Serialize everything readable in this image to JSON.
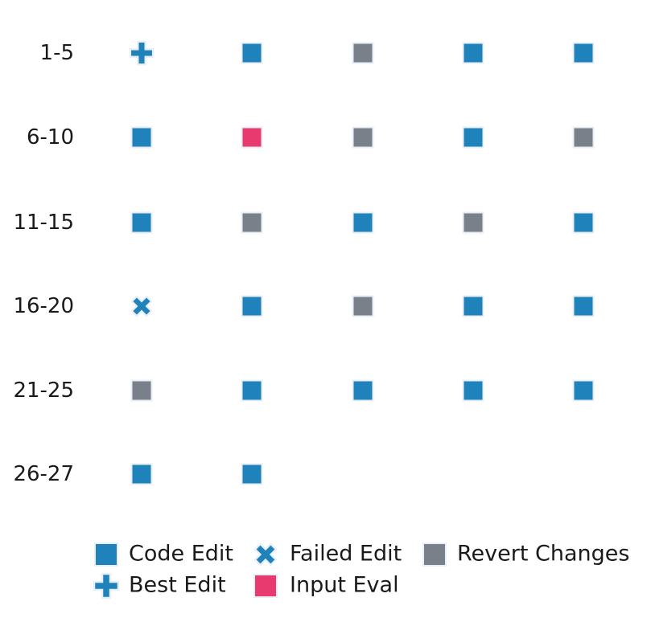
{
  "chart_data": {
    "type": "scatter",
    "title": "",
    "subtitle": "",
    "xlabel": "",
    "ylabel": "",
    "grid": false,
    "legend_position": "bottom",
    "description": "Sequence of 27 edit actions wrapped five per row; each cell marker encodes the action type",
    "row_labels": [
      "1-5",
      "6-10",
      "11-15",
      "16-20",
      "21-25",
      "26-27"
    ],
    "rows": [
      {
        "label": "1-5",
        "markers": [
          "best",
          "code",
          "revert",
          "code",
          "code"
        ]
      },
      {
        "label": "6-10",
        "markers": [
          "code",
          "input",
          "revert",
          "code",
          "revert"
        ]
      },
      {
        "label": "11-15",
        "markers": [
          "code",
          "revert",
          "code",
          "revert",
          "code"
        ]
      },
      {
        "label": "16-20",
        "markers": [
          "failed",
          "code",
          "revert",
          "code",
          "code"
        ]
      },
      {
        "label": "21-25",
        "markers": [
          "revert",
          "code",
          "code",
          "code",
          "code"
        ]
      },
      {
        "label": "26-27",
        "markers": [
          "code",
          "code",
          null,
          null,
          null
        ]
      }
    ],
    "marker_types": {
      "code": {
        "label": "Code Edit",
        "shape": "square",
        "color": "#1f82bb"
      },
      "failed": {
        "label": "Failed Edit",
        "shape": "x",
        "color": "#1f82bb"
      },
      "revert": {
        "label": "Revert Changes",
        "shape": "square",
        "color": "#79808a"
      },
      "best": {
        "label": "Best Edit",
        "shape": "plus",
        "color": "#1f82bb"
      },
      "input": {
        "label": "Input Eval",
        "shape": "square",
        "color": "#e93a70"
      }
    },
    "legend": [
      {
        "label": "Code Edit",
        "type": "code",
        "col": 0,
        "row": 0
      },
      {
        "label": "Failed Edit",
        "type": "failed",
        "col": 1,
        "row": 0
      },
      {
        "label": "Revert Changes",
        "type": "revert",
        "col": 2,
        "row": 0
      },
      {
        "label": "Best Edit",
        "type": "best",
        "col": 0,
        "row": 1
      },
      {
        "label": "Input Eval",
        "type": "input",
        "col": 1,
        "row": 1
      }
    ],
    "colors": {
      "blue": "#1f82bb",
      "gray": "#79808a",
      "pink": "#e93a70",
      "marker_edge": "#e9eff6",
      "text": "#1a1a1a",
      "background": "#ffffff"
    }
  }
}
